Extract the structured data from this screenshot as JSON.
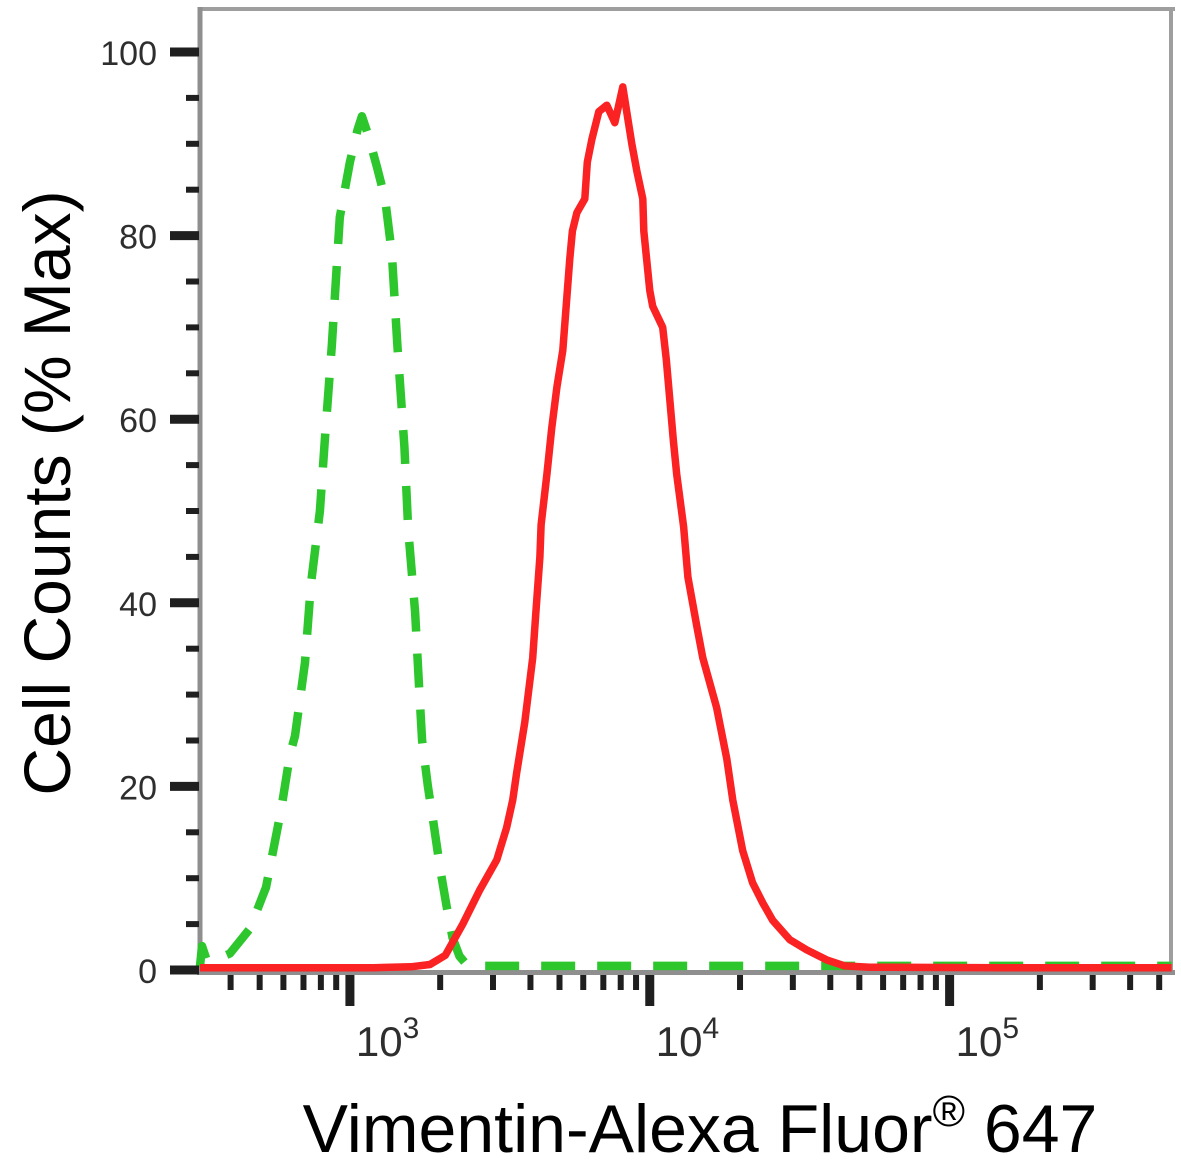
{
  "style": {
    "background": "#ffffff",
    "axis_color": "#8f8f8f",
    "border_color": "#9e9e9e",
    "tick_color": "#1f1f1f",
    "tick_label_color": "#2e2e2e",
    "title_color": "#000000",
    "green_series_color": "#2dc62d",
    "red_series_color": "#fa2222"
  },
  "chart_data": {
    "type": "line",
    "subtype": "flow-cytometry-histogram-overlay",
    "title": "",
    "xlabel_full": "Vimentin-Alexa Fluor® 647",
    "xlabel_parts": {
      "main": "Vimentin-Alexa Fluor",
      "sup": "®",
      "tail": " 647"
    },
    "ylabel": "Cell Counts (% Max)",
    "x_scale": "log",
    "x_log10_domain": [
      2.5,
      5.745
    ],
    "ylim": [
      0,
      105
    ],
    "grid": false,
    "legend": "none",
    "y_ticks": [
      {
        "value": 0,
        "label": "0"
      },
      {
        "value": 20,
        "label": "20"
      },
      {
        "value": 40,
        "label": "40"
      },
      {
        "value": 60,
        "label": "60"
      },
      {
        "value": 80,
        "label": "80"
      },
      {
        "value": 100,
        "label": "100"
      }
    ],
    "y_minor_tick_step": 5,
    "x_ticks": [
      {
        "value": 1000,
        "base": "10",
        "exp": "3"
      },
      {
        "value": 10000,
        "base": "10",
        "exp": "4"
      },
      {
        "value": 100000,
        "base": "10",
        "exp": "5"
      }
    ],
    "x_minor_ticks": "multiples 2-9 of each decade",
    "series": [
      {
        "name": "green-dashed-control",
        "color": "#2dc62d",
        "style": "dashed",
        "peak": {
          "x": 1100,
          "y_pct": 93
        },
        "points": [
          [
            316,
            0.3
          ],
          [
            321,
            2.6
          ],
          [
            332,
            1.2
          ],
          [
            360,
            1.2
          ],
          [
            398,
            1.8
          ],
          [
            464,
            4.5
          ],
          [
            525,
            9
          ],
          [
            590,
            17.5
          ],
          [
            631,
            23.5
          ],
          [
            656,
            25.5
          ],
          [
            708,
            33.5
          ],
          [
            741,
            42
          ],
          [
            794,
            50
          ],
          [
            826,
            58
          ],
          [
            870,
            68
          ],
          [
            925,
            82
          ],
          [
            1000,
            88
          ],
          [
            1060,
            91.5
          ],
          [
            1096,
            93
          ],
          [
            1150,
            91
          ],
          [
            1230,
            87.5
          ],
          [
            1310,
            84
          ],
          [
            1380,
            78
          ],
          [
            1440,
            68
          ],
          [
            1520,
            57
          ],
          [
            1565,
            48
          ],
          [
            1650,
            39
          ],
          [
            1700,
            31
          ],
          [
            1740,
            25
          ],
          [
            1820,
            20
          ],
          [
            1900,
            16
          ],
          [
            2000,
            11
          ],
          [
            2100,
            7
          ],
          [
            2200,
            3.5
          ],
          [
            2320,
            1.5
          ],
          [
            2450,
            0.6
          ],
          [
            2700,
            0.45
          ],
          [
            6000,
            0.45
          ],
          [
            20000,
            0.45
          ],
          [
            80000,
            0.45
          ],
          [
            250000,
            0.45
          ],
          [
            550000,
            0.45
          ]
        ]
      },
      {
        "name": "red-solid-vimentin-stained",
        "color": "#fa2222",
        "style": "solid",
        "peak": {
          "x": 8100,
          "y_pct": 96
        },
        "points": [
          [
            316,
            0.25
          ],
          [
            700,
            0.25
          ],
          [
            1200,
            0.25
          ],
          [
            1600,
            0.35
          ],
          [
            1850,
            0.6
          ],
          [
            2080,
            1.6
          ],
          [
            2380,
            5
          ],
          [
            2710,
            8.7
          ],
          [
            3090,
            12
          ],
          [
            3330,
            15.5
          ],
          [
            3490,
            18.5
          ],
          [
            3600,
            21.5
          ],
          [
            3830,
            27
          ],
          [
            4070,
            34
          ],
          [
            4170,
            39
          ],
          [
            4300,
            45
          ],
          [
            4340,
            48.5
          ],
          [
            4540,
            54
          ],
          [
            4710,
            59
          ],
          [
            4900,
            63.5
          ],
          [
            5130,
            67.5
          ],
          [
            5410,
            77.5
          ],
          [
            5520,
            80.5
          ],
          [
            5715,
            82.5
          ],
          [
            6070,
            84
          ],
          [
            6190,
            88
          ],
          [
            6410,
            90.5
          ],
          [
            6760,
            93.5
          ],
          [
            7190,
            94.2
          ],
          [
            7645,
            92.3
          ],
          [
            8130,
            96.2
          ],
          [
            8710,
            90
          ],
          [
            9060,
            87
          ],
          [
            9480,
            84
          ],
          [
            9550,
            80.5
          ],
          [
            10000,
            74
          ],
          [
            10230,
            72.3
          ],
          [
            11040,
            70
          ],
          [
            11350,
            66.5
          ],
          [
            11670,
            62
          ],
          [
            12000,
            57.5
          ],
          [
            12300,
            54
          ],
          [
            12970,
            48.3
          ],
          [
            13400,
            42.8
          ],
          [
            14360,
            37.4
          ],
          [
            15030,
            34
          ],
          [
            16710,
            28.6
          ],
          [
            18070,
            23
          ],
          [
            18920,
            18.5
          ],
          [
            20420,
            13
          ],
          [
            22030,
            9.5
          ],
          [
            23820,
            7.3
          ],
          [
            25700,
            5.4
          ],
          [
            29310,
            3.3
          ],
          [
            33340,
            2.2
          ],
          [
            38900,
            1.1
          ],
          [
            44670,
            0.45
          ],
          [
            54080,
            0.3
          ],
          [
            150000,
            0.25
          ],
          [
            550000,
            0.25
          ]
        ]
      }
    ]
  }
}
